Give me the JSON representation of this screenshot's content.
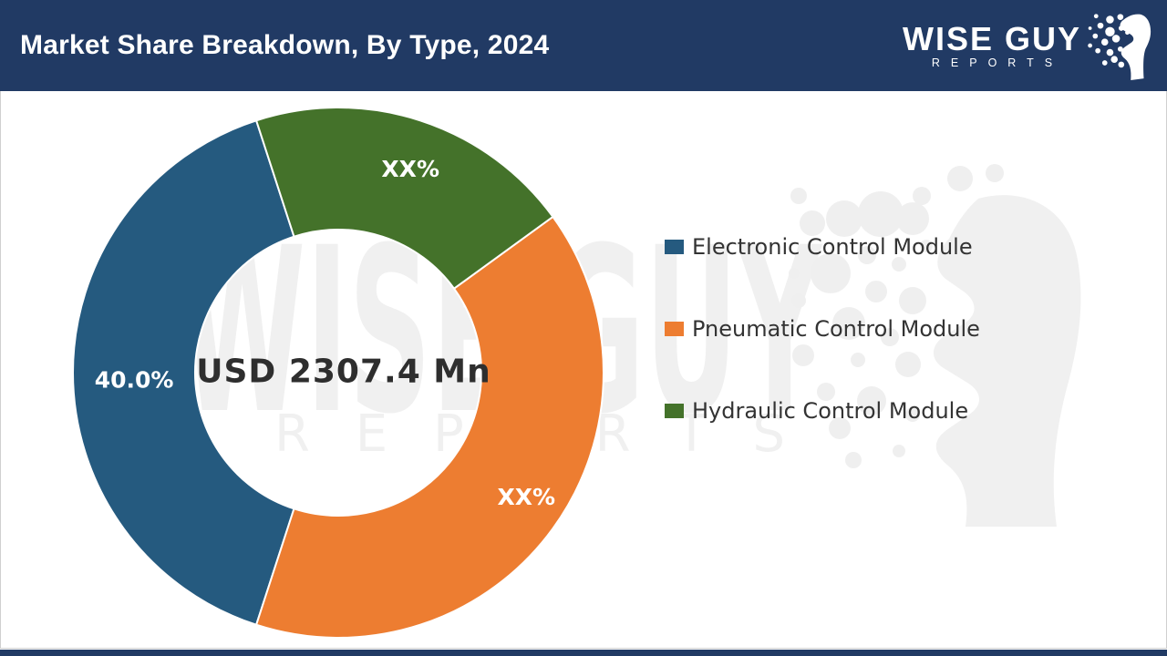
{
  "header": {
    "title": "Market Share Breakdown, By Type, 2024",
    "logo": {
      "brand": "WISE GUY",
      "sub": "REPORTS"
    }
  },
  "watermark": {
    "brand": "WISE GUY",
    "sub": "REPORTS"
  },
  "chart_data": {
    "type": "pie",
    "subtype": "donut",
    "title": "Market Share Breakdown, By Type, 2024",
    "center_label": "USD 2307.4 Mn",
    "legend_position": "right",
    "start_angle_deg": 108,
    "direction": "counterclockwise",
    "series": [
      {
        "name": "Electronic Control Module",
        "value": 40.0,
        "display_label": "40.0%",
        "color": "#255a7f"
      },
      {
        "name": "Pneumatic Control Module",
        "value": 40.0,
        "display_label": "XX%",
        "color": "#ed7d31"
      },
      {
        "name": "Hydraulic Control Module",
        "value": 20.0,
        "display_label": "XX%",
        "color": "#44722a"
      }
    ]
  },
  "colors": {
    "header_bg": "#213a64",
    "footer_bg": "#213a64",
    "watermark": "#f0f0f0",
    "center_text": "#2e2e2e",
    "legend_text": "#333333"
  }
}
